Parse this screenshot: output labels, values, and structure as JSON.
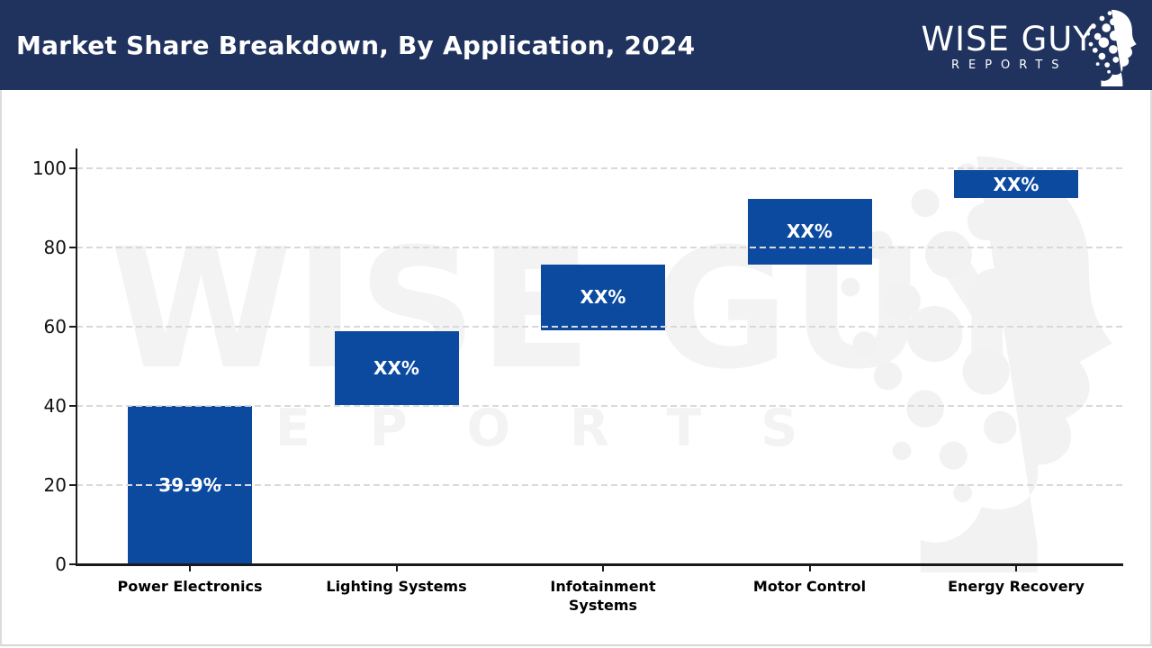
{
  "header": {
    "title": "Market Share Breakdown, By Application, 2024",
    "brand": {
      "name": "WISE GUY",
      "sub": "REPORTS"
    }
  },
  "watermark": {
    "line1": "WISE GUY",
    "line2": "REPORTS"
  },
  "colors": {
    "navy": "#20335f",
    "bar": "#0c4aa0",
    "grid": "#d9d9d9",
    "watermark": "#f3f3f3"
  },
  "chart_data": {
    "type": "bar",
    "subtype": "waterfall",
    "title": "Market Share Breakdown, By Application, 2024",
    "categories": [
      "Power Electronics",
      "Lighting Systems",
      "Infotainment Systems",
      "Motor Control",
      "Energy Recovery"
    ],
    "category_label_lines": [
      [
        "Power Electronics"
      ],
      [
        "Lighting Systems"
      ],
      [
        "Infotainment",
        "Systems"
      ],
      [
        "Motor Control"
      ],
      [
        "Energy Recovery"
      ]
    ],
    "segments": [
      {
        "category": "Power Electronics",
        "start": 0,
        "end": 39.9,
        "label": "39.9%"
      },
      {
        "category": "Lighting Systems",
        "start": 40.3,
        "end": 58.8,
        "label": "XX%"
      },
      {
        "category": "Infotainment Systems",
        "start": 59.2,
        "end": 75.7,
        "label": "XX%"
      },
      {
        "category": "Motor Control",
        "start": 75.7,
        "end": 92.3,
        "label": "XX%"
      },
      {
        "category": "Energy Recovery",
        "start": 92.4,
        "end": 99.5,
        "label": "XX%"
      }
    ],
    "ylim": [
      0,
      100
    ],
    "yticks": [
      0,
      20,
      40,
      60,
      80,
      100
    ],
    "grid": {
      "axis": "y",
      "style": "dashed"
    },
    "legend": null,
    "xlabel": "",
    "ylabel": ""
  }
}
